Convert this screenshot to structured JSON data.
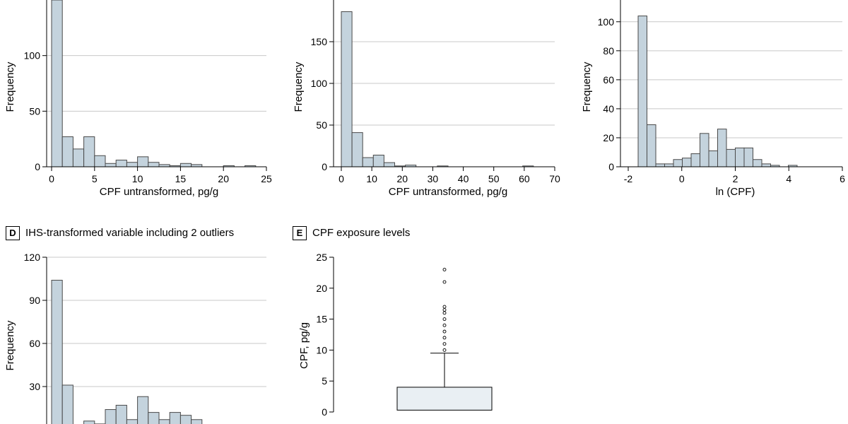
{
  "panels": {
    "d": {
      "letter": "D",
      "title": "IHS-transformed variable including 2 outliers"
    },
    "e": {
      "letter": "E",
      "title": "CPF exposure levels"
    }
  },
  "colors": {
    "bar_fill": "#c4d3dd",
    "bar_stroke": "#4a4a4a",
    "box_fill": "#e9eff3",
    "grid": "#c8c8c8"
  },
  "chart_data": [
    {
      "id": "A",
      "type": "bar",
      "subtype": "histogram",
      "xlabel": "CPF untransformed, pg/g",
      "ylabel": "Frequency",
      "xlim": [
        0,
        25
      ],
      "ylim": [
        0,
        150
      ],
      "xticks": [
        0,
        5,
        10,
        15,
        20,
        25
      ],
      "yticks": [
        0,
        50,
        100
      ],
      "grid": true,
      "bin_width": 1.25,
      "bins": [
        {
          "x": 0,
          "y": 150
        },
        {
          "x": 1.25,
          "y": 27
        },
        {
          "x": 2.5,
          "y": 16
        },
        {
          "x": 3.75,
          "y": 27
        },
        {
          "x": 5,
          "y": 10
        },
        {
          "x": 6.25,
          "y": 3
        },
        {
          "x": 7.5,
          "y": 6
        },
        {
          "x": 8.75,
          "y": 4
        },
        {
          "x": 10,
          "y": 9
        },
        {
          "x": 11.25,
          "y": 4
        },
        {
          "x": 12.5,
          "y": 2
        },
        {
          "x": 13.75,
          "y": 1
        },
        {
          "x": 15,
          "y": 3
        },
        {
          "x": 16.25,
          "y": 2
        },
        {
          "x": 17.5,
          "y": 0
        },
        {
          "x": 18.75,
          "y": 0
        },
        {
          "x": 20,
          "y": 1
        },
        {
          "x": 21.25,
          "y": 0
        },
        {
          "x": 22.5,
          "y": 1
        },
        {
          "x": 23.75,
          "y": 0
        }
      ]
    },
    {
      "id": "B",
      "type": "bar",
      "subtype": "histogram",
      "xlabel": "CPF untransformed, pg/g",
      "ylabel": "Frequency",
      "xlim": [
        0,
        70
      ],
      "ylim": [
        0,
        200
      ],
      "xticks": [
        0,
        10,
        20,
        30,
        40,
        50,
        60,
        70
      ],
      "yticks": [
        0,
        50,
        100,
        150
      ],
      "grid": true,
      "bin_width": 3.5,
      "bins": [
        {
          "x": 0,
          "y": 186
        },
        {
          "x": 3.5,
          "y": 41
        },
        {
          "x": 7,
          "y": 11
        },
        {
          "x": 10.5,
          "y": 14
        },
        {
          "x": 14,
          "y": 5
        },
        {
          "x": 17.5,
          "y": 1
        },
        {
          "x": 21,
          "y": 2
        },
        {
          "x": 24.5,
          "y": 0
        },
        {
          "x": 28,
          "y": 0
        },
        {
          "x": 31.5,
          "y": 1
        },
        {
          "x": 35,
          "y": 0
        },
        {
          "x": 38.5,
          "y": 0
        },
        {
          "x": 42,
          "y": 0
        },
        {
          "x": 45.5,
          "y": 0
        },
        {
          "x": 49,
          "y": 0
        },
        {
          "x": 52.5,
          "y": 0
        },
        {
          "x": 56,
          "y": 0
        },
        {
          "x": 59.5,
          "y": 1
        },
        {
          "x": 63,
          "y": 0
        },
        {
          "x": 66.5,
          "y": 0
        }
      ]
    },
    {
      "id": "C",
      "type": "bar",
      "subtype": "histogram",
      "xlabel": "ln (CPF)",
      "ylabel": "Frequency",
      "xlim": [
        -2,
        6
      ],
      "ylim": [
        0,
        115
      ],
      "xticks": [
        -2,
        0,
        2,
        4,
        6
      ],
      "yticks": [
        0,
        20,
        40,
        60,
        80,
        100
      ],
      "grid": true,
      "bin_width": 0.33,
      "bins": [
        {
          "x": -1.63,
          "y": 104
        },
        {
          "x": -1.3,
          "y": 29
        },
        {
          "x": -0.97,
          "y": 2
        },
        {
          "x": -0.64,
          "y": 2
        },
        {
          "x": -0.31,
          "y": 5
        },
        {
          "x": 0.02,
          "y": 6
        },
        {
          "x": 0.35,
          "y": 9
        },
        {
          "x": 0.68,
          "y": 23
        },
        {
          "x": 1.01,
          "y": 11
        },
        {
          "x": 1.34,
          "y": 26
        },
        {
          "x": 1.67,
          "y": 12
        },
        {
          "x": 2.0,
          "y": 13
        },
        {
          "x": 2.33,
          "y": 13
        },
        {
          "x": 2.66,
          "y": 5
        },
        {
          "x": 2.99,
          "y": 2
        },
        {
          "x": 3.32,
          "y": 1
        },
        {
          "x": 3.65,
          "y": 0
        },
        {
          "x": 3.98,
          "y": 1
        }
      ]
    },
    {
      "id": "D",
      "type": "bar",
      "subtype": "histogram",
      "xlabel": "",
      "ylabel": "Frequency",
      "xlim": [
        0,
        20
      ],
      "ylim": [
        0,
        120
      ],
      "yticks": [
        0,
        30,
        60,
        90,
        120
      ],
      "grid": true,
      "bin_width": 1,
      "bins": [
        {
          "x": 0,
          "y": 104
        },
        {
          "x": 1,
          "y": 31
        },
        {
          "x": 2,
          "y": 0
        },
        {
          "x": 3,
          "y": 6
        },
        {
          "x": 4,
          "y": 4
        },
        {
          "x": 5,
          "y": 14
        },
        {
          "x": 6,
          "y": 17
        },
        {
          "x": 7,
          "y": 7
        },
        {
          "x": 8,
          "y": 23
        },
        {
          "x": 9,
          "y": 12
        },
        {
          "x": 10,
          "y": 7
        },
        {
          "x": 11,
          "y": 12
        },
        {
          "x": 12,
          "y": 10
        },
        {
          "x": 13,
          "y": 7
        }
      ]
    },
    {
      "id": "E",
      "type": "box",
      "ylabel": "CPF, pg/g",
      "ylim": [
        0,
        25
      ],
      "yticks": [
        0,
        5,
        10,
        15,
        20,
        25
      ],
      "box": {
        "q1": 0.3,
        "q3": 4.0,
        "whisker_high": 9.5
      },
      "outliers": [
        10,
        11,
        12,
        13,
        14,
        15,
        16,
        16.5,
        17,
        21,
        23
      ]
    }
  ]
}
